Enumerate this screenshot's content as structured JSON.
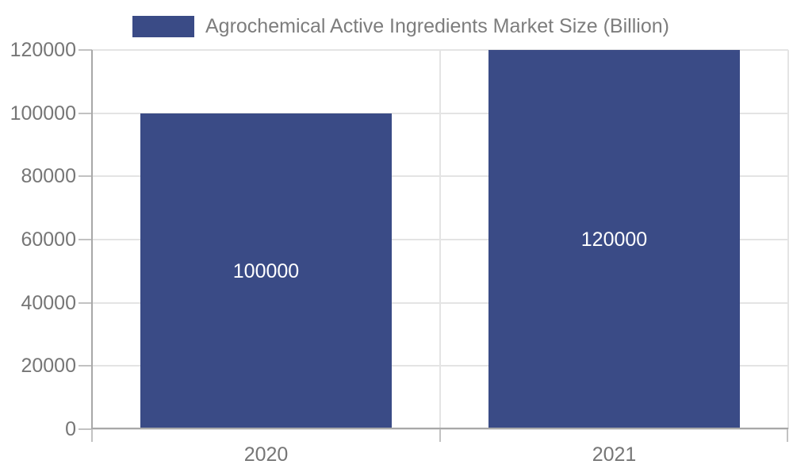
{
  "chart_data": {
    "type": "bar",
    "title": "Agrochemical Active Ingredients Market Size (Billion)",
    "legend": {
      "label": "Agrochemical Active Ingredients Market Size (Billion)",
      "position": "top-left"
    },
    "categories": [
      "2020",
      "2021"
    ],
    "values": [
      100000,
      120000
    ],
    "bar_labels": [
      "100000",
      "120000"
    ],
    "bar_label_placement": "center-of-bar",
    "xlabel": "",
    "ylabel": "",
    "ylim": [
      0,
      120000
    ],
    "yticks": [
      0,
      20000,
      40000,
      60000,
      80000,
      100000,
      120000
    ],
    "ytick_labels": [
      "0",
      "20000",
      "40000",
      "60000",
      "80000",
      "100000",
      "120000"
    ],
    "grid": true,
    "bar_width_fraction": 0.72,
    "colors": {
      "bar": "#3a4b86",
      "bar_label": "#ffffff",
      "tick_label": "#767676",
      "legend_text": "#7d7d7d",
      "gridline": "#e4e4e4",
      "axis_line": "#a8a8a8",
      "tick_mark": "#c2c2c2",
      "background": "#ffffff"
    }
  }
}
